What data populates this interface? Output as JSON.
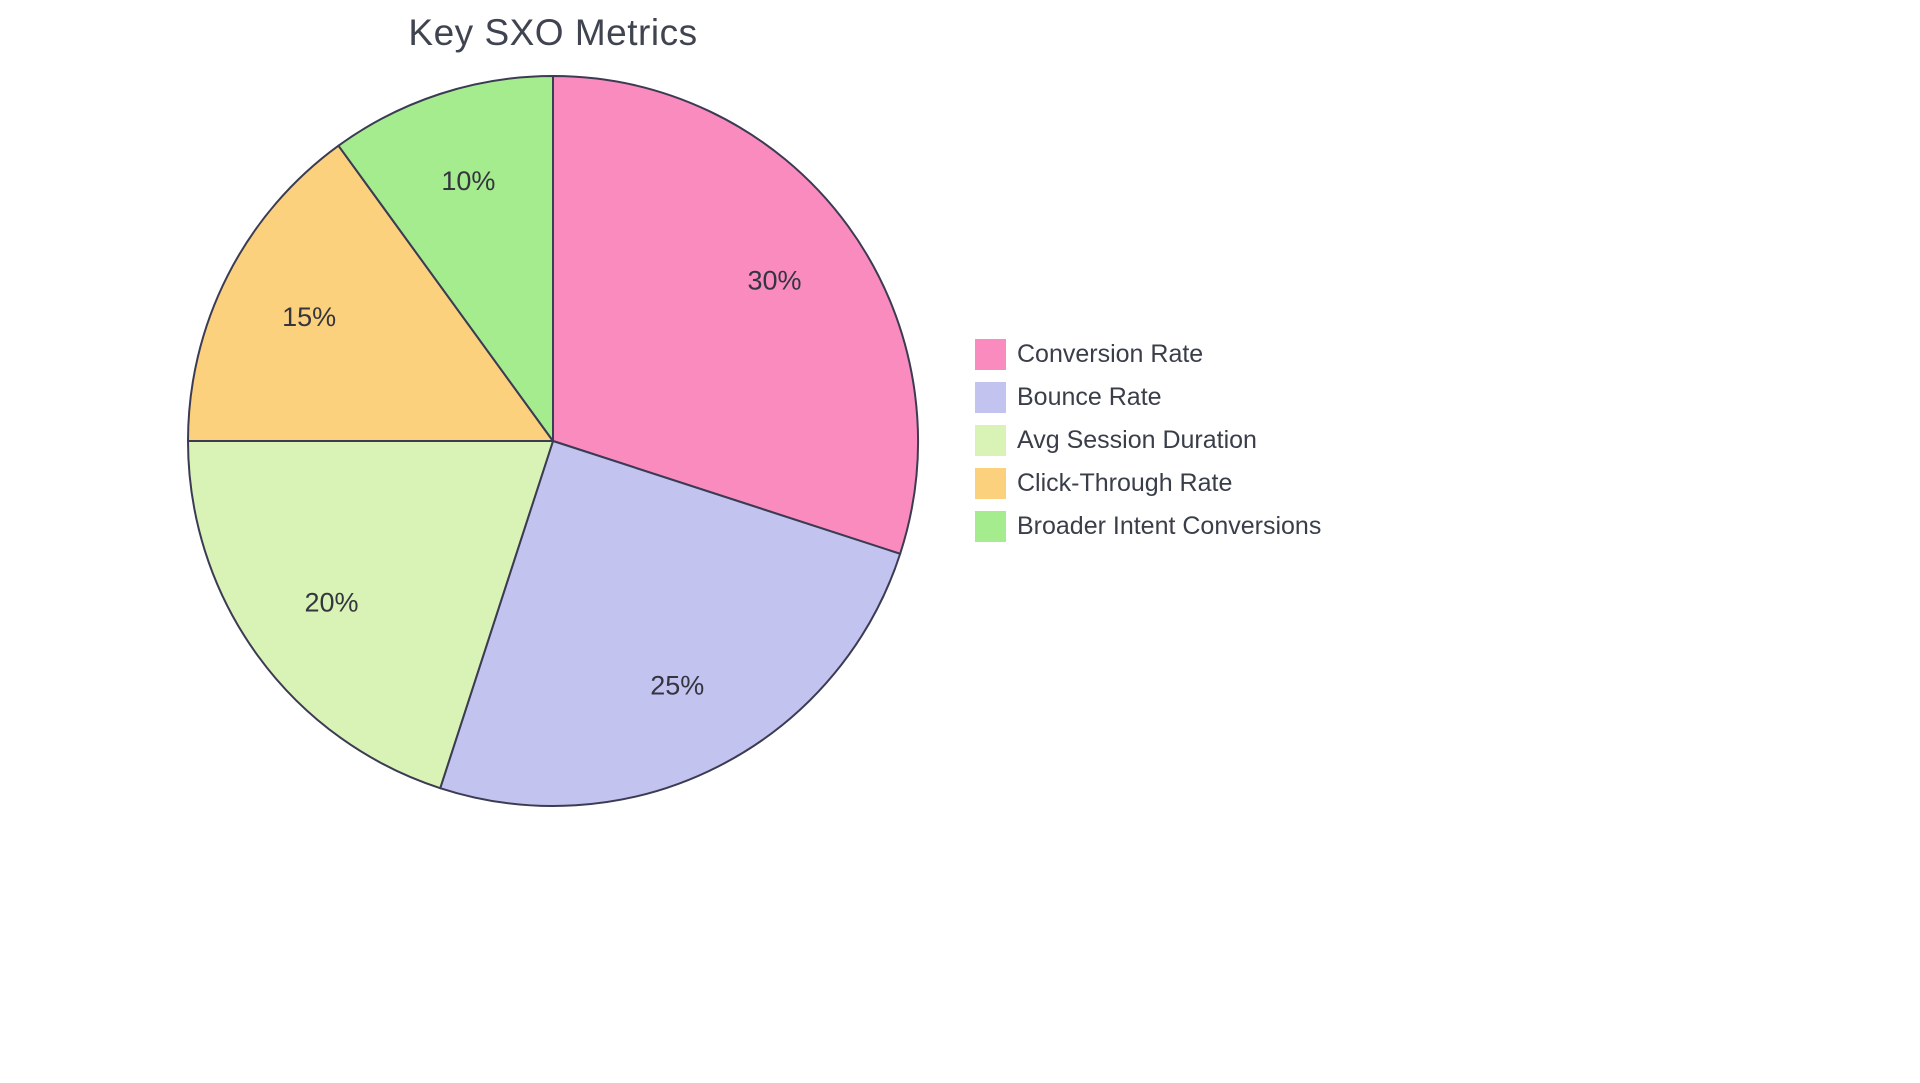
{
  "chart_data": {
    "type": "pie",
    "title": "Key SXO Metrics",
    "labels": [
      "Conversion Rate",
      "Bounce Rate",
      "Avg Session Duration",
      "Click-Through Rate",
      "Broader Intent Conversions"
    ],
    "values": [
      30,
      25,
      20,
      15,
      10
    ],
    "slice_labels": [
      "30%",
      "25%",
      "20%",
      "15%",
      "10%"
    ],
    "colors": [
      "#F98BBE",
      "#C3C3F0",
      "#D9F3B6",
      "#FCD17E",
      "#A5EC8E"
    ],
    "stroke_color": "#3B3B53",
    "legend_position": "right",
    "start_angle_deg": 0,
    "direction": "clockwise",
    "background": "#FFFFFF"
  }
}
